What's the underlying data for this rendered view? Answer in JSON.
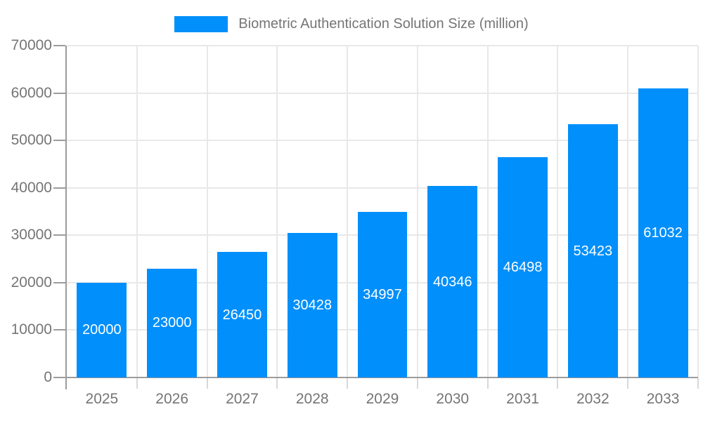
{
  "chart_data": {
    "type": "bar",
    "title": "Biometric Authentication Solution Size (million)",
    "categories": [
      "2025",
      "2026",
      "2027",
      "2028",
      "2029",
      "2030",
      "2031",
      "2032",
      "2033"
    ],
    "values": [
      20000,
      23000,
      26450,
      30428,
      34997,
      40346,
      46498,
      53423,
      61032
    ],
    "xlabel": "",
    "ylabel": "",
    "ylim": [
      0,
      70000
    ],
    "ytick_step": 10000,
    "ytick_labels": [
      "0",
      "10000",
      "20000",
      "30000",
      "40000",
      "50000",
      "60000",
      "70000"
    ],
    "grid": true,
    "legend_position": "top",
    "bar_width_fraction": 0.71,
    "colors": {
      "bar": "#008FFB",
      "bar_label": "#FFFFFF",
      "axis_text": "#757575",
      "grid_line": "#E8E8E8",
      "axis_line": "#9C9C9C",
      "minor_tick": "#D8D8D8",
      "background": "#FFFFFF"
    }
  }
}
